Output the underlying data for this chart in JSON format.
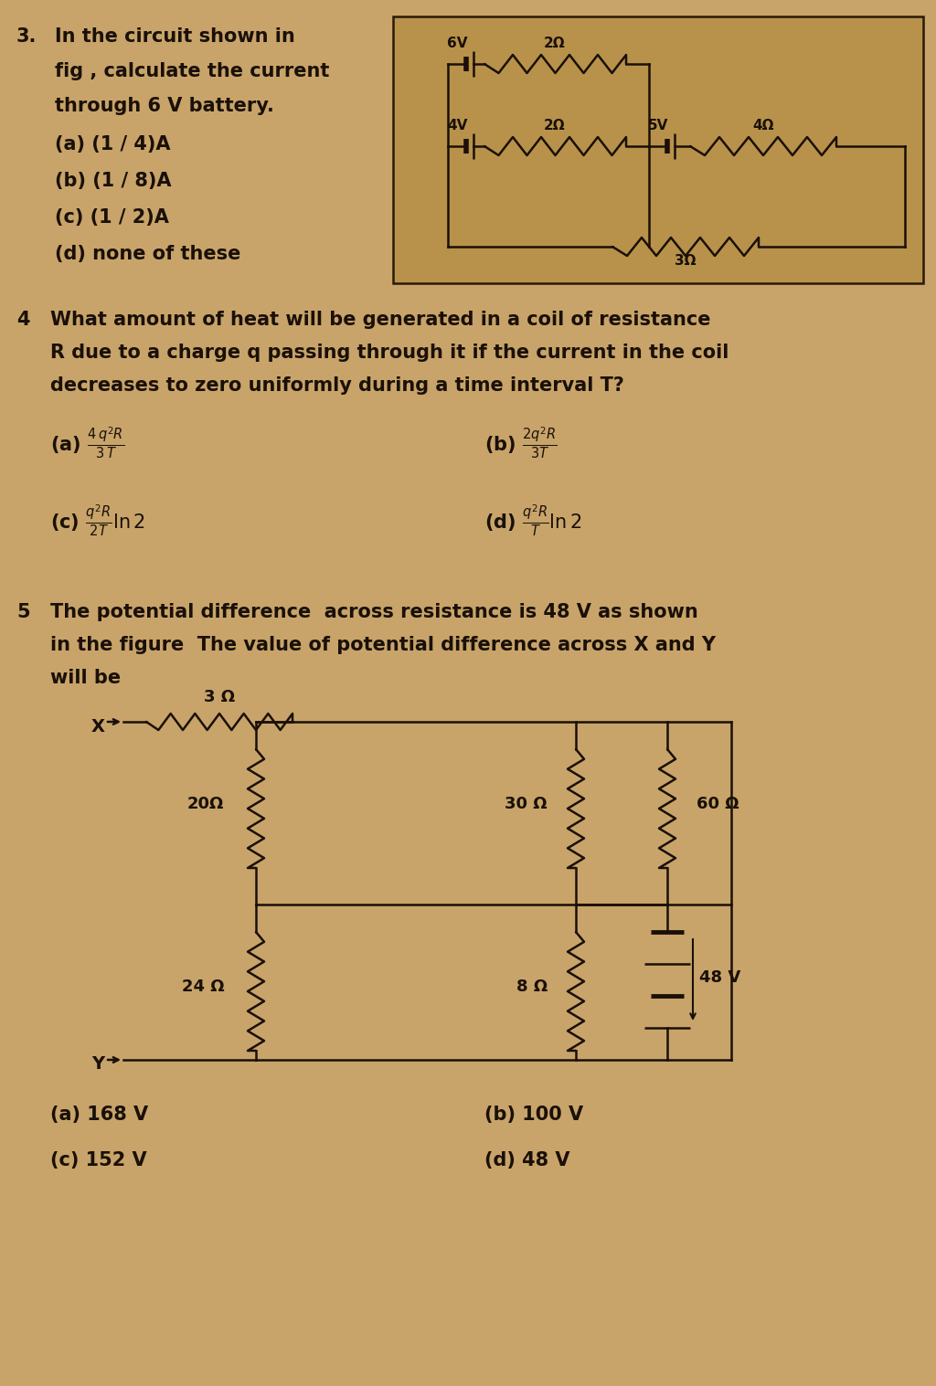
{
  "background_color": "#c8a46a",
  "box_color": "#b8924a",
  "lighter_bg": "#d4b878",
  "text_color": "#1a1008",
  "q3": {
    "number": "3.",
    "lines": [
      "In the circuit shown in",
      "fig , calculate the current",
      "through 6 V battery."
    ],
    "options": [
      "(a) (1 / 4)A",
      "(b) (1 / 8)A",
      "(c) (1 / 2)A",
      "(d) none of these"
    ]
  },
  "q4": {
    "number": "4",
    "lines": [
      "What amount of heat will be generated in a coil of resistance",
      "R due to a charge q passing through it if the current in the coil",
      "decreases to zero uniformly during a time interval T?"
    ]
  },
  "q5": {
    "number": "5",
    "lines": [
      "The potential difference  across resistance is 48 V as shown",
      "in the figure  The value of potential difference across X and Y",
      "will be"
    ],
    "opt_a": "(a) 168 V",
    "opt_b": "(b) 100 V",
    "opt_c": "(c) 152 V",
    "opt_d": "(d) 48 V"
  }
}
